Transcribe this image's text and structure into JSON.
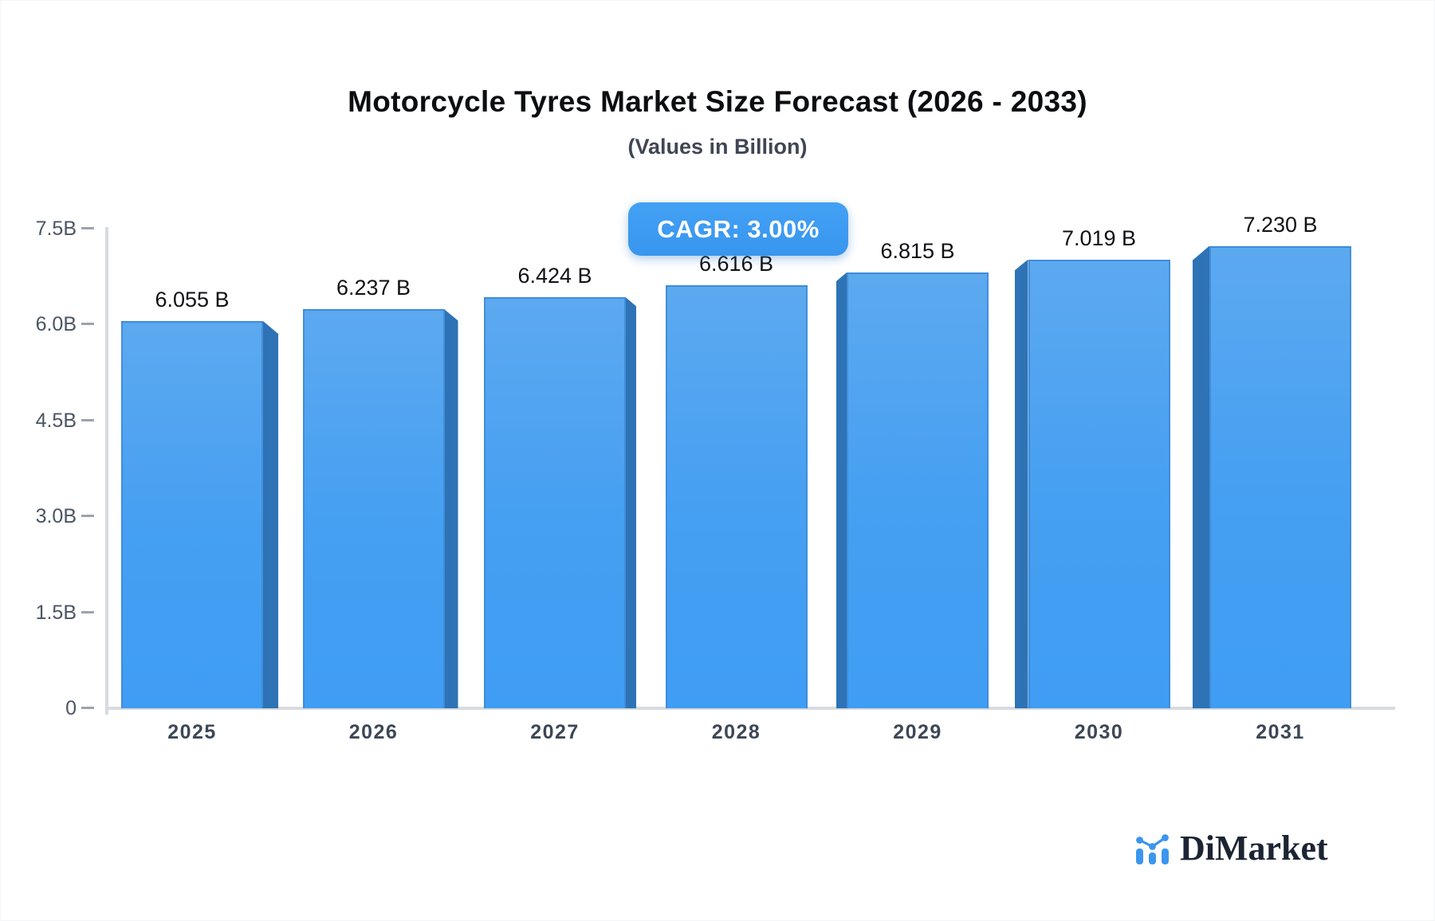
{
  "chart_data": {
    "type": "bar",
    "title": "Motorcycle Tyres Market Size Forecast (2026 - 2033)",
    "subtitle": "(Values in Billion)",
    "annotation": "CAGR: 3.00%",
    "unit": "Billion",
    "categories": [
      "2025",
      "2026",
      "2027",
      "2028",
      "2029",
      "2030",
      "2031"
    ],
    "values": [
      6.055,
      6.237,
      6.424,
      6.616,
      6.815,
      7.019,
      7.23
    ],
    "value_labels": [
      "6.055 B",
      "6.237 B",
      "6.424 B",
      "6.616 B",
      "6.815 B",
      "7.019 B",
      "7.230 B"
    ],
    "ylim": [
      0,
      7.5
    ],
    "yticks": [
      {
        "label": "0",
        "value": 0
      },
      {
        "label": "1.5B",
        "value": 1.5
      },
      {
        "label": "3.0B",
        "value": 3.0
      },
      {
        "label": "4.5B",
        "value": 4.5
      },
      {
        "label": "6.0B",
        "value": 6.0
      },
      {
        "label": "7.5B",
        "value": 7.5
      }
    ],
    "grid": false,
    "legend": false,
    "style_3d": true,
    "xlabel": "",
    "ylabel": ""
  },
  "footer": {
    "brand": "DiMarket",
    "logo_icon": "bar-line-chart-icon"
  },
  "colors": {
    "bar_face_top": "#5CA9F0",
    "bar_face_bottom": "#3F9DF3",
    "bar_face_border": "#3E88D3",
    "bar_side_shade": "#2D73B5",
    "badge_bg": "#3D9BF2",
    "badge_text": "#FFFFFF",
    "axis_line": "#D7DAE0",
    "tick_dash": "#9CA3AF",
    "tick_text": "#4B5563",
    "category_text": "#3D4757",
    "value_text": "#0F1114",
    "title_text": "#0B0D10",
    "subtitle_text": "#3F4654",
    "logo_text": "#1C2434",
    "logo_icon": "#3B96EE"
  }
}
